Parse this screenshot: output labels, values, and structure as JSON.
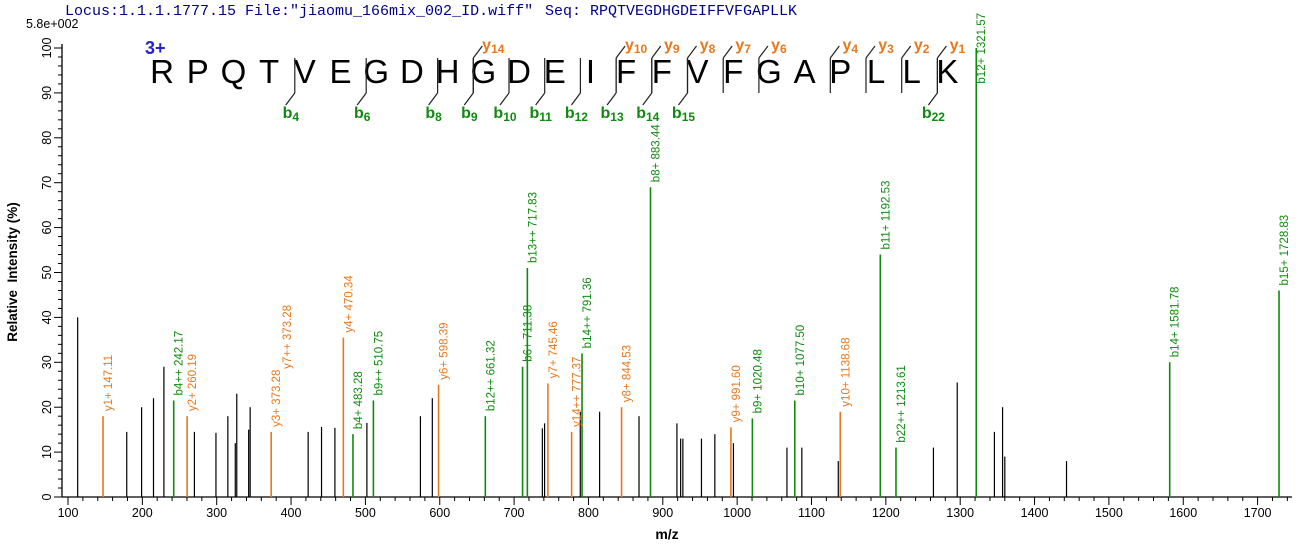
{
  "header": {
    "locus_file": "Locus:1.1.1.1777.15 File:\"jiaomu_166mix_002_ID.wiff\"",
    "seq": "Seq: RPQTVEGDHGDEIFFVFGAPLLK",
    "base_peak": "5.8e+002"
  },
  "colors": {
    "navy": "#00008b",
    "orange": "#e8781e",
    "green": "#0f8a0f",
    "blue": "#2323cc",
    "black": "#000000"
  },
  "sequence_ladder": {
    "charge": "3+",
    "residues": [
      "R",
      "P",
      "Q",
      "T",
      "V",
      "E",
      "G",
      "D",
      "H",
      "G",
      "D",
      "E",
      "I",
      "F",
      "F",
      "V",
      "F",
      "G",
      "A",
      "P",
      "L",
      "L",
      "K"
    ],
    "y_prefix": "y",
    "b_prefix": "b",
    "y_marks": [
      {
        "after": 9,
        "sub": "14"
      },
      {
        "after": 13,
        "sub": "10"
      },
      {
        "after": 14,
        "sub": "9"
      },
      {
        "after": 15,
        "sub": "8"
      },
      {
        "after": 16,
        "sub": "7"
      },
      {
        "after": 17,
        "sub": "6"
      },
      {
        "after": 19,
        "sub": "4"
      },
      {
        "after": 20,
        "sub": "3"
      },
      {
        "after": 21,
        "sub": "2"
      },
      {
        "after": 22,
        "sub": "1"
      }
    ],
    "b_marks": [
      {
        "after": 4,
        "sub": "4"
      },
      {
        "after": 6,
        "sub": "6"
      },
      {
        "after": 8,
        "sub": "8"
      },
      {
        "after": 9,
        "sub": "9"
      },
      {
        "after": 10,
        "sub": "10"
      },
      {
        "after": 11,
        "sub": "11"
      },
      {
        "after": 12,
        "sub": "12"
      },
      {
        "after": 13,
        "sub": "13"
      },
      {
        "after": 14,
        "sub": "14"
      },
      {
        "after": 15,
        "sub": "15"
      },
      {
        "after": 22,
        "sub": "22"
      }
    ]
  },
  "chart_data": {
    "type": "bar",
    "subtype": "ms2-fragmentation-spectrum",
    "title": "",
    "xlabel": "m/z",
    "ylabel": "Relative  Intensity (%)",
    "xlim": [
      92,
      1746
    ],
    "ylim": [
      0,
      100
    ],
    "grid": false,
    "x_ticks": [
      100,
      200,
      300,
      400,
      500,
      600,
      700,
      800,
      900,
      1000,
      1100,
      1200,
      1300,
      1400,
      1500,
      1600,
      1700
    ],
    "y_ticks": [
      0,
      10,
      20,
      30,
      40,
      50,
      60,
      70,
      80,
      90,
      100
    ],
    "series": [
      {
        "name": "unassigned",
        "color": "#000000",
        "peaks": [
          [
            113,
            40
          ],
          [
            179,
            14.5
          ],
          [
            199,
            20
          ],
          [
            215,
            22
          ],
          [
            229,
            29
          ],
          [
            270,
            14.5
          ],
          [
            299,
            14.3
          ],
          [
            315,
            18
          ],
          [
            325,
            12
          ],
          [
            327,
            23
          ],
          [
            343,
            15
          ],
          [
            345,
            20
          ],
          [
            423,
            14.5
          ],
          [
            441,
            15.6
          ],
          [
            459,
            15.4
          ],
          [
            502,
            16.5
          ],
          [
            574,
            18
          ],
          [
            590,
            22
          ],
          [
            738,
            15.3
          ],
          [
            741,
            16.4
          ],
          [
            789,
            19
          ],
          [
            815,
            19
          ],
          [
            868,
            18
          ],
          [
            919,
            16.4
          ],
          [
            924,
            13
          ],
          [
            927,
            13
          ],
          [
            952,
            13
          ],
          [
            970,
            14
          ],
          [
            995,
            12
          ],
          [
            1067,
            11
          ],
          [
            1087,
            11
          ],
          [
            1136,
            8
          ],
          [
            1264,
            11
          ],
          [
            1296,
            25.5
          ],
          [
            1346,
            14.5
          ],
          [
            1357,
            20
          ],
          [
            1360,
            9
          ],
          [
            1443,
            8
          ]
        ]
      },
      {
        "name": "b-ions",
        "color": "#0f8a0f",
        "peaks": [
          {
            "mz": 242.17,
            "intensity": 21.5,
            "labels": [
              "b4++ 242.17"
            ]
          },
          {
            "mz": 483.28,
            "intensity": 14,
            "labels": [
              "b4+ 483.28"
            ]
          },
          {
            "mz": 510.75,
            "intensity": 21.5,
            "labels": [
              "b9++ 510.75"
            ]
          },
          {
            "mz": 661.32,
            "intensity": 18,
            "labels": [
              "b12++ 661.32"
            ]
          },
          {
            "mz": 711.38,
            "intensity": 29,
            "labels": [
              "b6+ 711.38"
            ]
          },
          {
            "mz": 717.83,
            "intensity": 51,
            "labels": [
              "b13++ 717.83"
            ]
          },
          {
            "mz": 791.36,
            "intensity": 32,
            "labels": [
              "b14++ 791.36"
            ]
          },
          {
            "mz": 883.44,
            "intensity": 69,
            "labels": [
              "b8+ 883.44"
            ]
          },
          {
            "mz": 1020.48,
            "intensity": 17.5,
            "labels": [
              "b9+ 1020.48"
            ]
          },
          {
            "mz": 1077.5,
            "intensity": 21.5,
            "labels": [
              "b10+ 1077.50"
            ]
          },
          {
            "mz": 1192.53,
            "intensity": 54,
            "labels": [
              "b11+ 1192.53"
            ]
          },
          {
            "mz": 1213.61,
            "intensity": 11,
            "labels": [
              "b22++ 1213.61"
            ]
          },
          {
            "mz": 1321.57,
            "intensity": 100,
            "labels": [
              "b12+ 1321.57"
            ]
          },
          {
            "mz": 1581.78,
            "intensity": 30,
            "labels": [
              "b14+ 1581.78"
            ]
          },
          {
            "mz": 1728.83,
            "intensity": 46,
            "labels": [
              "b15+ 1728.83"
            ]
          }
        ]
      },
      {
        "name": "y-ions",
        "color": "#e8781e",
        "peaks": [
          {
            "mz": 147.11,
            "intensity": 18,
            "labels": [
              "y1+ 147.11"
            ]
          },
          {
            "mz": 260.19,
            "intensity": 18,
            "labels": [
              "y2+ 260.19"
            ]
          },
          {
            "mz": 373.28,
            "intensity": 14.5,
            "labels": [
              "y3+ 373.28",
              "y7++ 373.28"
            ]
          },
          {
            "mz": 470.34,
            "intensity": 35.5,
            "labels": [
              "y4+ 470.34"
            ]
          },
          {
            "mz": 598.39,
            "intensity": 25,
            "labels": [
              "y6+ 598.39"
            ]
          },
          {
            "mz": 745.46,
            "intensity": 25.3,
            "labels": [
              "y7+ 745.46"
            ]
          },
          {
            "mz": 777.37,
            "intensity": 14.5,
            "labels": [
              "y14++ 777.37"
            ]
          },
          {
            "mz": 844.53,
            "intensity": 20,
            "labels": [
              "y8+ 844.53"
            ]
          },
          {
            "mz": 991.6,
            "intensity": 15.5,
            "labels": [
              "y9+ 991.60"
            ]
          },
          {
            "mz": 1138.68,
            "intensity": 19,
            "labels": [
              "y10+ 1138.68"
            ]
          }
        ]
      }
    ]
  }
}
